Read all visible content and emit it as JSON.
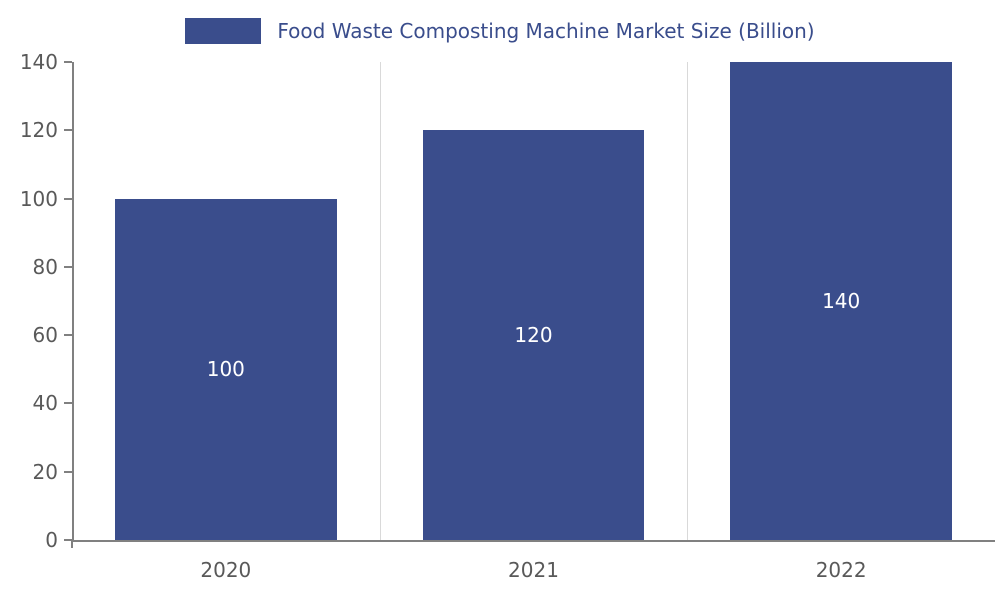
{
  "chart_data": {
    "type": "bar",
    "categories": [
      "2020",
      "2021",
      "2022"
    ],
    "values": [
      100,
      120,
      140
    ],
    "title": "Food Waste Composting Machine Market Size (Billion)",
    "xlabel": "",
    "ylabel": "",
    "ylim": [
      0,
      140
    ],
    "yticks": [
      0,
      20,
      40,
      60,
      80,
      100,
      120,
      140
    ],
    "grid": "vertical-only",
    "legend_position": "top-center",
    "bar_color": "#3A4D8C",
    "title_color": "#3A4D8C",
    "bar_label_color": "#ffffff",
    "tick_label_color": "#595959",
    "axis_color": "#808080",
    "gridline_color": "#d9d9d9"
  }
}
